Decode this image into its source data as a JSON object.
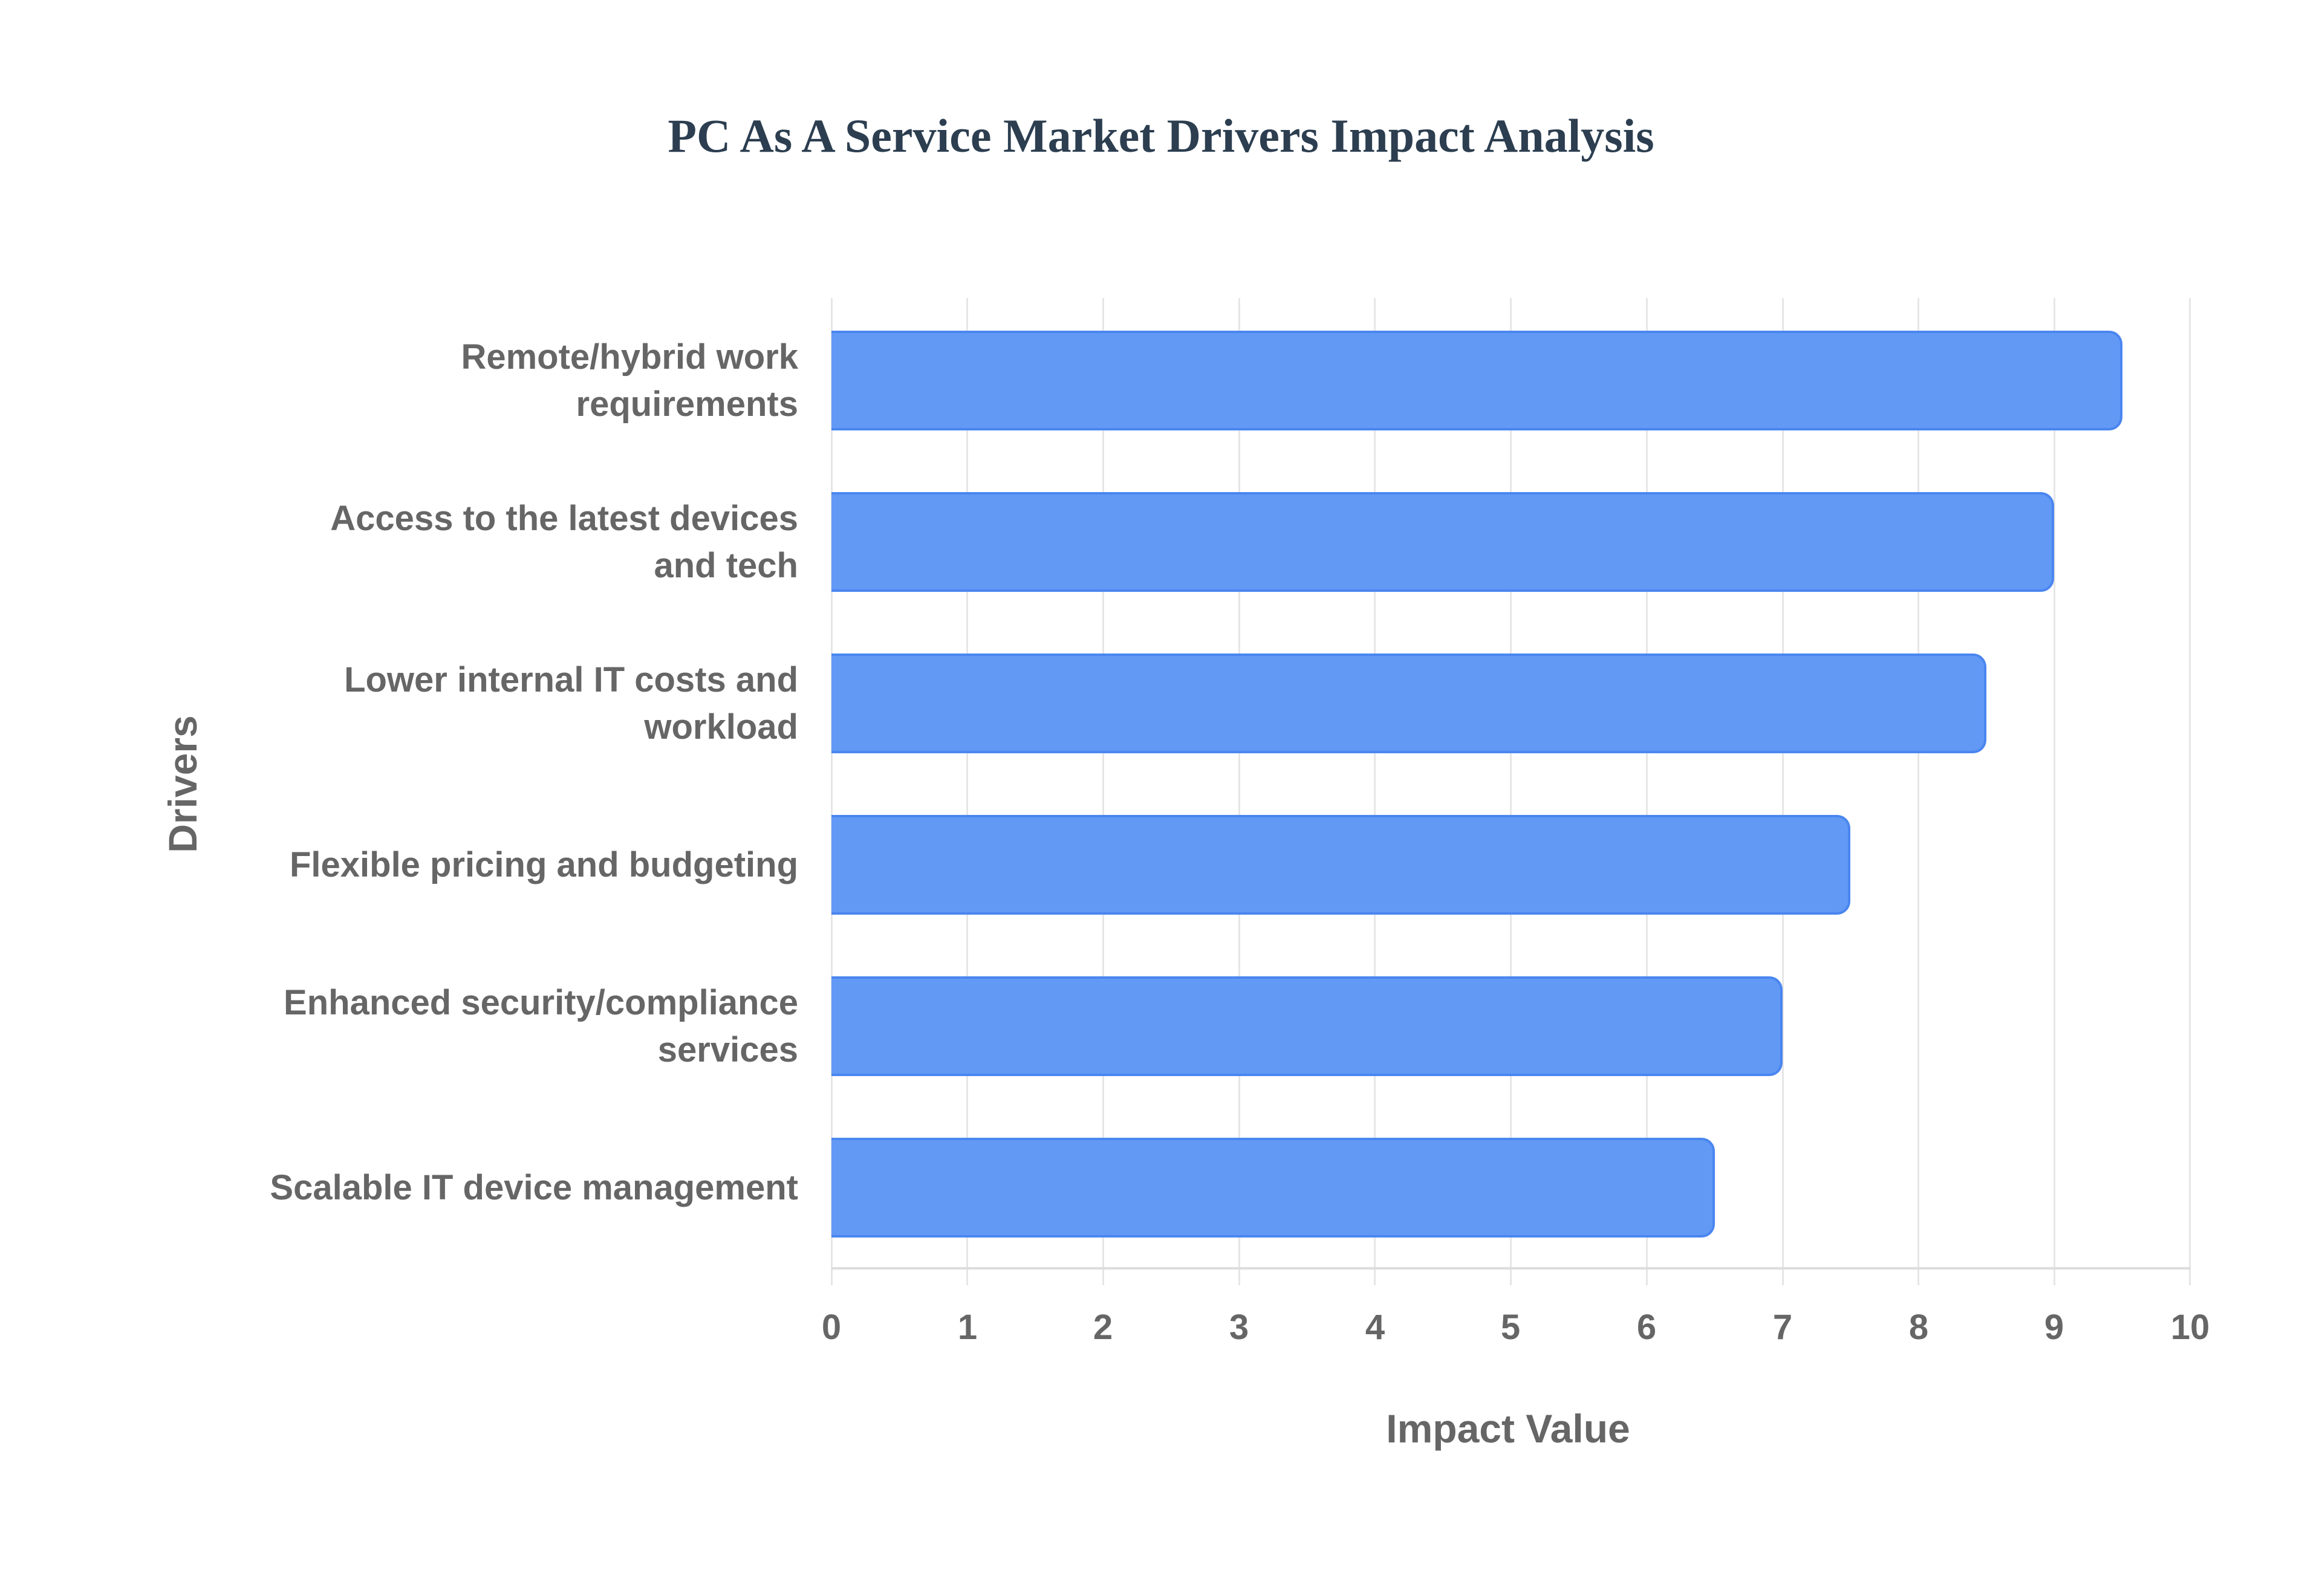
{
  "title": "PC As A Service Market Drivers Impact Analysis",
  "axes": {
    "x_title": "Impact Value",
    "y_title": "Drivers",
    "x_ticks": [
      "0",
      "1",
      "2",
      "3",
      "4",
      "5",
      "6",
      "7",
      "8",
      "9",
      "10"
    ]
  },
  "colors": {
    "bar_fill": "#6299f5",
    "bar_border": "#4a86f0",
    "title": "#2c3e50",
    "axis_text": "#666666",
    "grid": "#e6e6e6"
  },
  "bars": [
    {
      "label_line1": "Remote/hybrid work",
      "label_line2": "requirements",
      "value": 9.5
    },
    {
      "label_line1": "Access to the latest devices",
      "label_line2": "and tech",
      "value": 9.0
    },
    {
      "label_line1": "Lower internal IT costs and",
      "label_line2": "workload",
      "value": 8.5
    },
    {
      "label_line1": "Flexible pricing and budgeting",
      "label_line2": "",
      "value": 7.5
    },
    {
      "label_line1": "Enhanced security/compliance",
      "label_line2": "services",
      "value": 7.0
    },
    {
      "label_line1": "Scalable IT device management",
      "label_line2": "",
      "value": 6.5
    }
  ],
  "chart_data": {
    "type": "bar",
    "orientation": "horizontal",
    "title": "PC As A Service Market Drivers Impact Analysis",
    "xlabel": "Impact Value",
    "ylabel": "Drivers",
    "categories": [
      "Remote/hybrid work requirements",
      "Access to the latest devices and tech",
      "Lower internal IT costs and workload",
      "Flexible pricing and budgeting",
      "Enhanced security/compliance services",
      "Scalable IT device management"
    ],
    "values": [
      9.5,
      9.0,
      8.5,
      7.5,
      7.0,
      6.5
    ],
    "xlim": [
      0,
      10
    ],
    "x_ticks": [
      0,
      1,
      2,
      3,
      4,
      5,
      6,
      7,
      8,
      9,
      10
    ],
    "grid": true,
    "legend": "none"
  }
}
